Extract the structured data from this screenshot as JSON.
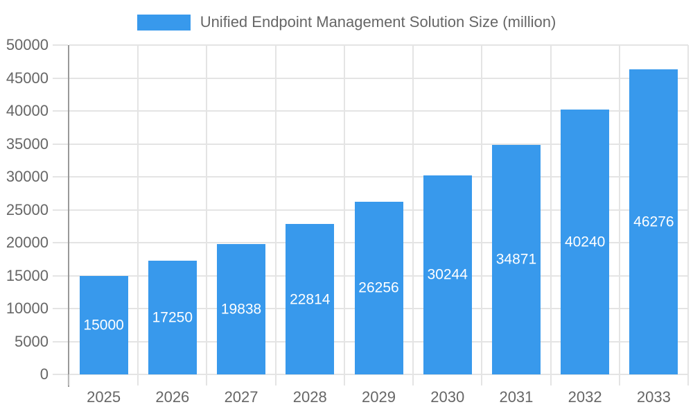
{
  "chart_data": {
    "type": "bar",
    "title": "Unified Endpoint Management Solution Size (million)",
    "categories": [
      "2025",
      "2026",
      "2027",
      "2028",
      "2029",
      "2030",
      "2031",
      "2032",
      "2033"
    ],
    "values": [
      15000,
      17250,
      19838,
      22814,
      26256,
      30244,
      34871,
      40240,
      46276
    ],
    "xlabel": "",
    "ylabel": "",
    "ylim": [
      0,
      50000
    ],
    "ytick_step": 5000,
    "grid": true,
    "legend_position": "top",
    "value_labels": "inside-center",
    "colors": {
      "bar": "#3899EC",
      "bar_label_text": "#FFFFFF",
      "axis_text": "#666666",
      "grid_line": "#E4E4E4",
      "axis_line": "#999999",
      "background": "#FFFFFF"
    }
  }
}
